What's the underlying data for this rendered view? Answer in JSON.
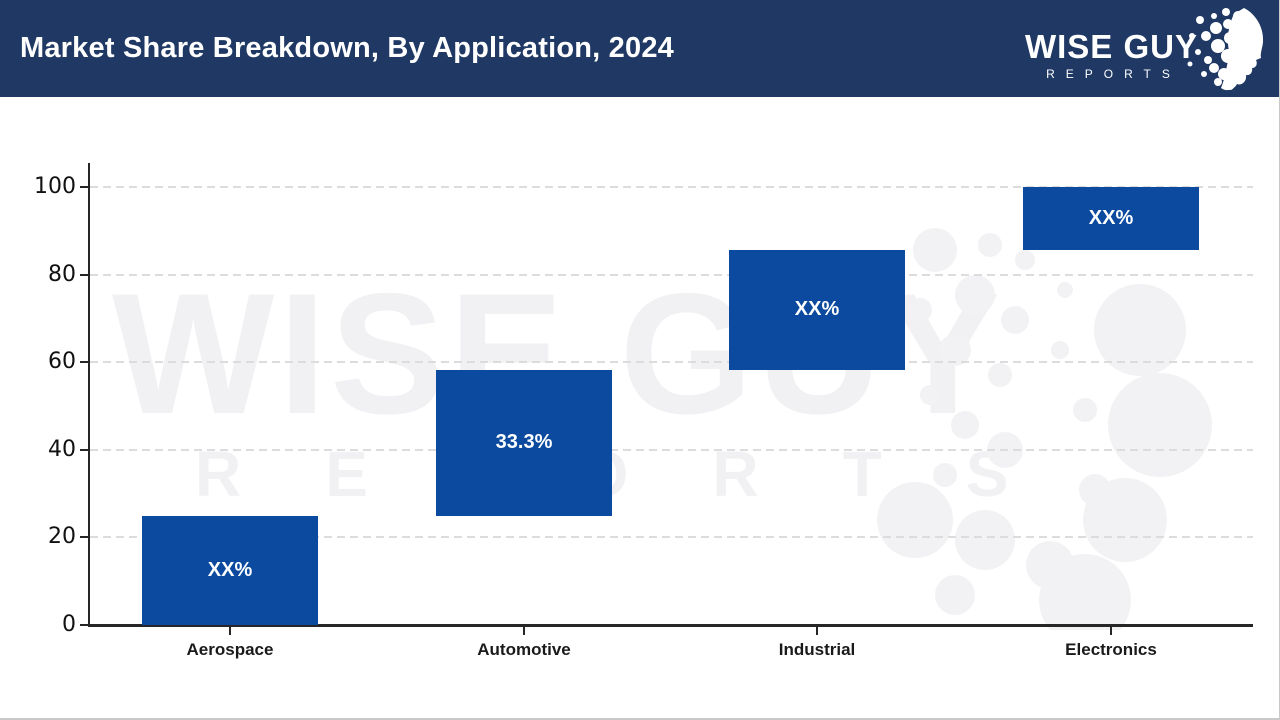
{
  "header": {
    "title": "Market Share Breakdown, By Application, 2024",
    "logo": {
      "line1": "WISE GUY",
      "line2": "REPORTS"
    }
  },
  "watermark": {
    "line1": "WISE GUY",
    "line2": "REPORTS"
  },
  "chart_data": {
    "type": "bar",
    "subtype": "waterfall",
    "title": "Market Share Breakdown, By Application, 2024",
    "categories": [
      "Aerospace",
      "Automotive",
      "Industrial",
      "Electronics"
    ],
    "segments": [
      {
        "category": "Aerospace",
        "start": 0,
        "end": 25,
        "label": "XX%"
      },
      {
        "category": "Automotive",
        "start": 25,
        "end": 58.3,
        "label": "33.3%"
      },
      {
        "category": "Industrial",
        "start": 58.3,
        "end": 85.8,
        "label": "XX%"
      },
      {
        "category": "Electronics",
        "start": 85.8,
        "end": 100,
        "label": "XX%"
      }
    ],
    "y_ticks": [
      0,
      20,
      40,
      60,
      80,
      100
    ],
    "ylim": [
      0,
      105
    ],
    "xlabel": "",
    "ylabel": "",
    "bar_color": "#0b4a9f",
    "grid": "horizontal-dashed",
    "legend": "none"
  }
}
